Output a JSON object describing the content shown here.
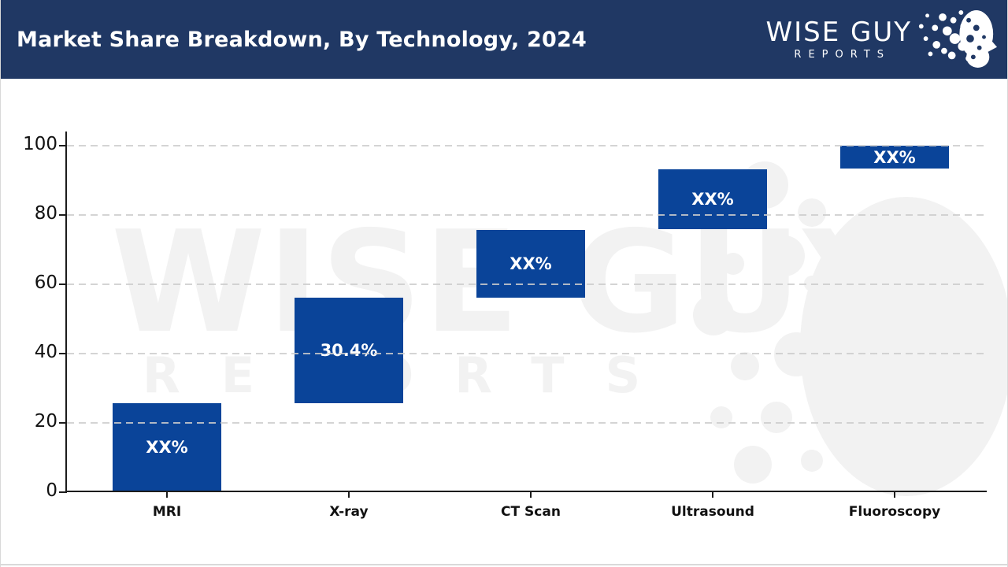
{
  "header": {
    "title": "Market Share Breakdown, By Technology, 2024",
    "bg_color": "#203864",
    "logo": {
      "line1": "WISE GUY",
      "line2": "REPORTS"
    }
  },
  "watermark": {
    "line1": "WISE GUY",
    "line2": "REPORTS"
  },
  "chart_data": {
    "type": "bar",
    "subtype": "waterfall",
    "title": "Market Share Breakdown, By Technology, 2024",
    "xlabel": "",
    "ylabel": "",
    "categories": [
      "MRI",
      "X-ray",
      "CT Scan",
      "Ultrasound",
      "Fluoroscopy"
    ],
    "segments": [
      {
        "category": "MRI",
        "start": 0,
        "end": 25.7,
        "label": "XX%"
      },
      {
        "category": "X-ray",
        "start": 25.7,
        "end": 56.1,
        "label": "30.4%"
      },
      {
        "category": "CT Scan",
        "start": 56.1,
        "end": 75.7,
        "label": "XX%"
      },
      {
        "category": "Ultrasound",
        "start": 75.9,
        "end": 93.2,
        "label": "XX%"
      },
      {
        "category": "Fluoroscopy",
        "start": 93.4,
        "end": 100,
        "label": "XX%"
      }
    ],
    "y_ticks": [
      0,
      20,
      40,
      60,
      80,
      100
    ],
    "ylim": [
      0,
      100
    ],
    "bar_color": "#0a4499",
    "grid": "horizontal-dashed",
    "legend": "none"
  }
}
